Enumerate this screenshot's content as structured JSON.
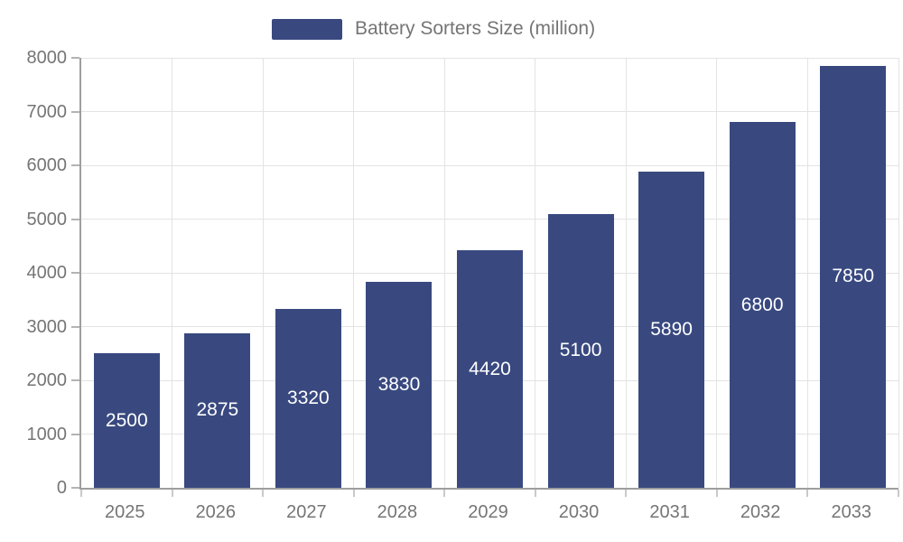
{
  "legend": {
    "label": "Battery Sorters Size (million)"
  },
  "colors": {
    "bar": "#394980",
    "axis": "#9e9e9e",
    "grid": "#e3e3e3",
    "text": "#757575",
    "bar_label": "#ffffff",
    "background": "#ffffff"
  },
  "chart_data": {
    "type": "bar",
    "title": "",
    "xlabel": "",
    "ylabel": "",
    "categories": [
      "2025",
      "2026",
      "2027",
      "2028",
      "2029",
      "2030",
      "2031",
      "2032",
      "2033"
    ],
    "values": [
      2500,
      2875,
      3320,
      3830,
      4420,
      5100,
      5890,
      6800,
      7850
    ],
    "series_name": "Battery Sorters Size (million)",
    "ylim": [
      0,
      8000
    ],
    "ytick_step": 1000,
    "ytick_labels": [
      "0",
      "1000",
      "2000",
      "3000",
      "4000",
      "5000",
      "6000",
      "7000",
      "8000"
    ],
    "grid": true,
    "legend_position": "top",
    "bar_label_position": "inside-center",
    "bar_color": "#394980"
  }
}
